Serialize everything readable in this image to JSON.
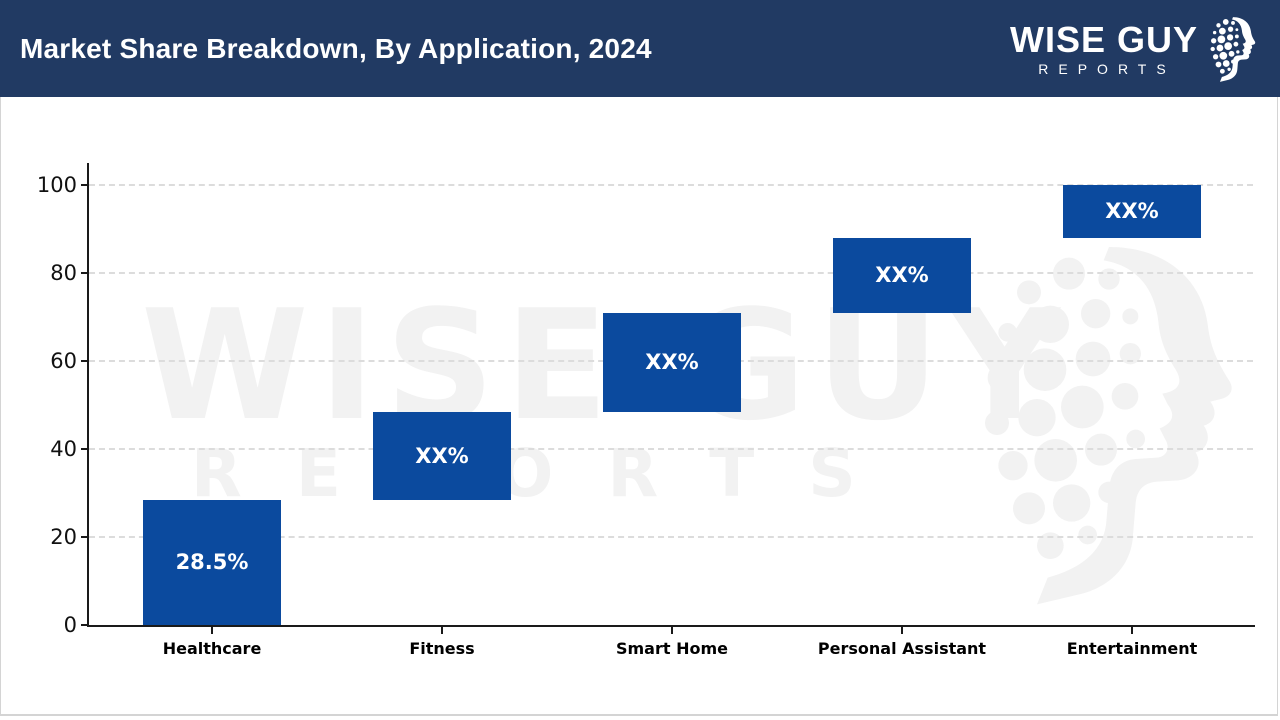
{
  "header": {
    "title": "Market Share Breakdown, By Application, 2024",
    "logo": {
      "name": "WISE GUY",
      "tagline": "REPORTS"
    }
  },
  "watermark": {
    "name": "WISE GUY",
    "tagline": "REPORTS"
  },
  "chart_data": {
    "type": "bar",
    "variant": "floating-waterfall",
    "title": "Market Share Breakdown, By Application, 2024",
    "categories": [
      "Healthcare",
      "Fitness",
      "Smart Home",
      "Personal Assistant",
      "Entertainment"
    ],
    "segments": [
      {
        "category": "Healthcare",
        "start": 0,
        "end": 28.5,
        "label": "28.5%"
      },
      {
        "category": "Fitness",
        "start": 28.5,
        "end": 48.5,
        "label": "XX%"
      },
      {
        "category": "Smart Home",
        "start": 48.5,
        "end": 71,
        "label": "XX%"
      },
      {
        "category": "Personal Assistant",
        "start": 71,
        "end": 88,
        "label": "XX%"
      },
      {
        "category": "Entertainment",
        "start": 88,
        "end": 100,
        "label": "XX%"
      }
    ],
    "xlabel": "",
    "ylabel": "",
    "yticks": [
      0,
      20,
      40,
      60,
      80,
      100
    ],
    "ylim": [
      0,
      105
    ],
    "grid": "horizontal-dashed",
    "legend": "none"
  },
  "style": {
    "header_bg": "#213a63",
    "header_text": "#ffffff",
    "bar_color": "#0b4a9e",
    "bar_label_color": "#ffffff",
    "axis_color": "#1a1a1a",
    "grid_color": "#dcdcdc",
    "watermark_color": "#f2f2f2",
    "border_color": "#d4d4d4"
  }
}
